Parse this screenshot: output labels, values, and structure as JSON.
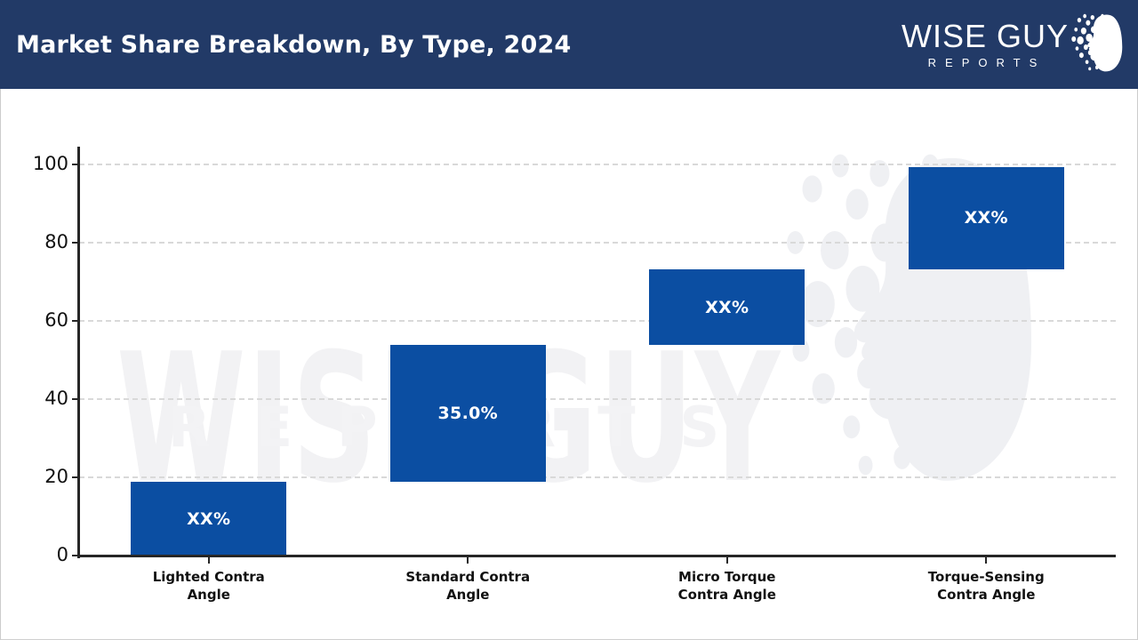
{
  "header": {
    "title": "Market Share Breakdown, By Type, 2024",
    "background_color": "#223a67",
    "logo": {
      "name": "WISE GUY",
      "subtitle": "REPORTS",
      "icon": "dotted-head-profile-icon"
    }
  },
  "watermark": {
    "line1": "WISE GUY",
    "line2": "REPORTS",
    "icon": "dotted-head-profile-watermark"
  },
  "chart_data": {
    "type": "bar",
    "variant": "waterfall",
    "title": "Market Share Breakdown, By Type, 2024",
    "categories": [
      "Lighted Contra Angle",
      "Standard Contra Angle",
      "Micro Torque Contra Angle",
      "Torque-Sensing Contra Angle"
    ],
    "category_label_lines": [
      [
        "Lighted Contra",
        "Angle"
      ],
      [
        "Standard Contra",
        "Angle"
      ],
      [
        "Micro Torque",
        "Contra Angle"
      ],
      [
        "Torque-Sensing",
        "Contra Angle"
      ]
    ],
    "segments": [
      {
        "category": "Lighted Contra Angle",
        "start": 0,
        "end": 18.8,
        "label": "XX%"
      },
      {
        "category": "Standard Contra Angle",
        "start": 18.8,
        "end": 53.8,
        "label": "35.0%",
        "value": 35.0
      },
      {
        "category": "Micro Torque Contra Angle",
        "start": 53.8,
        "end": 73.2,
        "label": "XX%"
      },
      {
        "category": "Torque-Sensing Contra Angle",
        "start": 73.2,
        "end": 99.4,
        "label": "XX%"
      }
    ],
    "ylim": [
      0,
      100
    ],
    "yticks": [
      "0",
      "20",
      "40",
      "60",
      "80",
      "100"
    ],
    "grid": {
      "axis": "y",
      "style": "dashed",
      "color": "#d9d9d9"
    },
    "bar_color": "#0b4ea2",
    "bar_label_color": "#ffffff",
    "axis_color": "#262626",
    "tick_label_color": "#111111",
    "legend": "none"
  }
}
